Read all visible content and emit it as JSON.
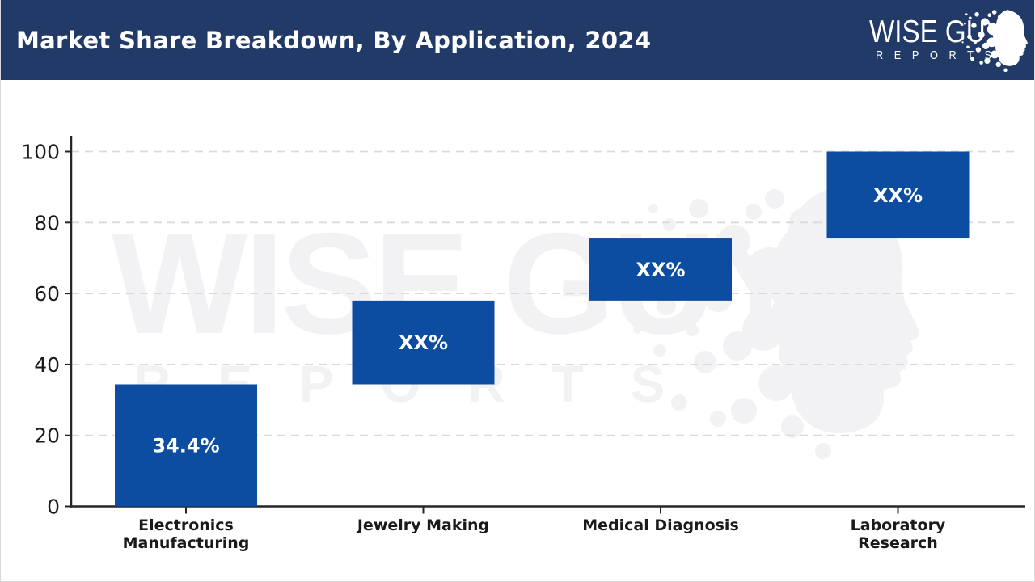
{
  "header": {
    "title": "Market Share Breakdown, By Application, 2024",
    "logo": {
      "name_line": "WISE GUY",
      "sub_line": "REPORTS"
    }
  },
  "watermark": {
    "name_line": "WISE GUY",
    "sub_line": "REPORTS"
  },
  "chart_data": {
    "type": "bar",
    "variant": "floating-segment-bars",
    "title": "Market Share Breakdown, By Application, 2024",
    "categories": [
      "Electronics Manufacturing",
      "Jewelry Making",
      "Medical Diagnosis",
      "Laboratory Research"
    ],
    "segments": [
      {
        "category": "Electronics Manufacturing",
        "category_lines": [
          "Electronics",
          "Manufacturing"
        ],
        "start": 0,
        "end": 34.4,
        "label": "34.4%"
      },
      {
        "category": "Jewelry Making",
        "category_lines": [
          "Jewelry Making"
        ],
        "start": 34.4,
        "end": 58,
        "label": "XX%"
      },
      {
        "category": "Medical Diagnosis",
        "category_lines": [
          "Medical Diagnosis"
        ],
        "start": 58,
        "end": 75.5,
        "label": "XX%"
      },
      {
        "category": "Laboratory Research",
        "category_lines": [
          "Laboratory",
          "Research"
        ],
        "start": 75.5,
        "end": 100,
        "label": "XX%"
      }
    ],
    "yticks": [
      0,
      20,
      40,
      60,
      80,
      100
    ],
    "ylim": [
      0,
      100
    ],
    "grid": {
      "horizontal_dashed": true
    },
    "legend": "none",
    "colors": {
      "bar": "#0c4da2",
      "bar_label": "#ffffff",
      "grid": "#dadada",
      "axis": "#262626",
      "tick_text": "#1a1a1a",
      "header_bg": "#213a67",
      "watermark": "#f2f2f4"
    }
  }
}
